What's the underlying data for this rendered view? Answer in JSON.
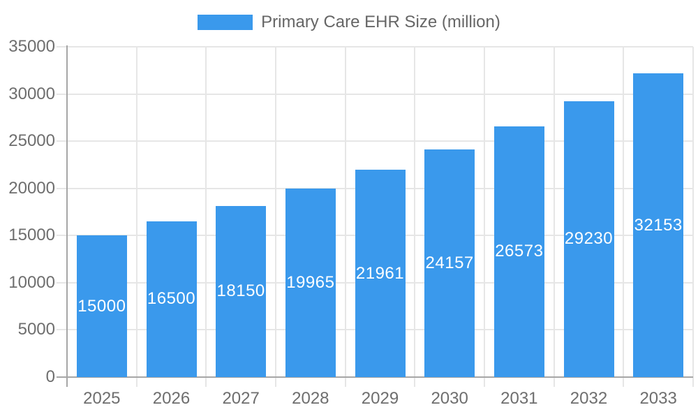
{
  "legend": {
    "label": "Primary Care EHR Size (million)"
  },
  "chart_data": {
    "type": "bar",
    "title": "Primary Care EHR Size (million)",
    "categories": [
      "2025",
      "2026",
      "2027",
      "2028",
      "2029",
      "2030",
      "2031",
      "2032",
      "2033"
    ],
    "series": [
      {
        "name": "Primary Care EHR Size (million)",
        "values": [
          15000,
          16500,
          18150,
          19965,
          21961,
          24157,
          26573,
          29230,
          32153
        ]
      }
    ],
    "value_labels": [
      "15000",
      "16500",
      "18150",
      "19965",
      "21961",
      "24157",
      "26573",
      "29230",
      "32153"
    ],
    "y_ticks": [
      0,
      5000,
      10000,
      15000,
      20000,
      25000,
      30000,
      35000
    ],
    "ylim": [
      0,
      35000
    ],
    "xlabel": "",
    "ylabel": "",
    "grid": true,
    "legend_position": "top-center",
    "value_label_position": "inside-center",
    "colors": {
      "bar": "#3A99EC",
      "bar_label": "#FFFFFF",
      "grid": "#E6E6E6",
      "axis": "#A6A6A6",
      "tick_label": "#6E6E6E",
      "legend_label": "#666666",
      "background": "#FFFFFF"
    }
  }
}
